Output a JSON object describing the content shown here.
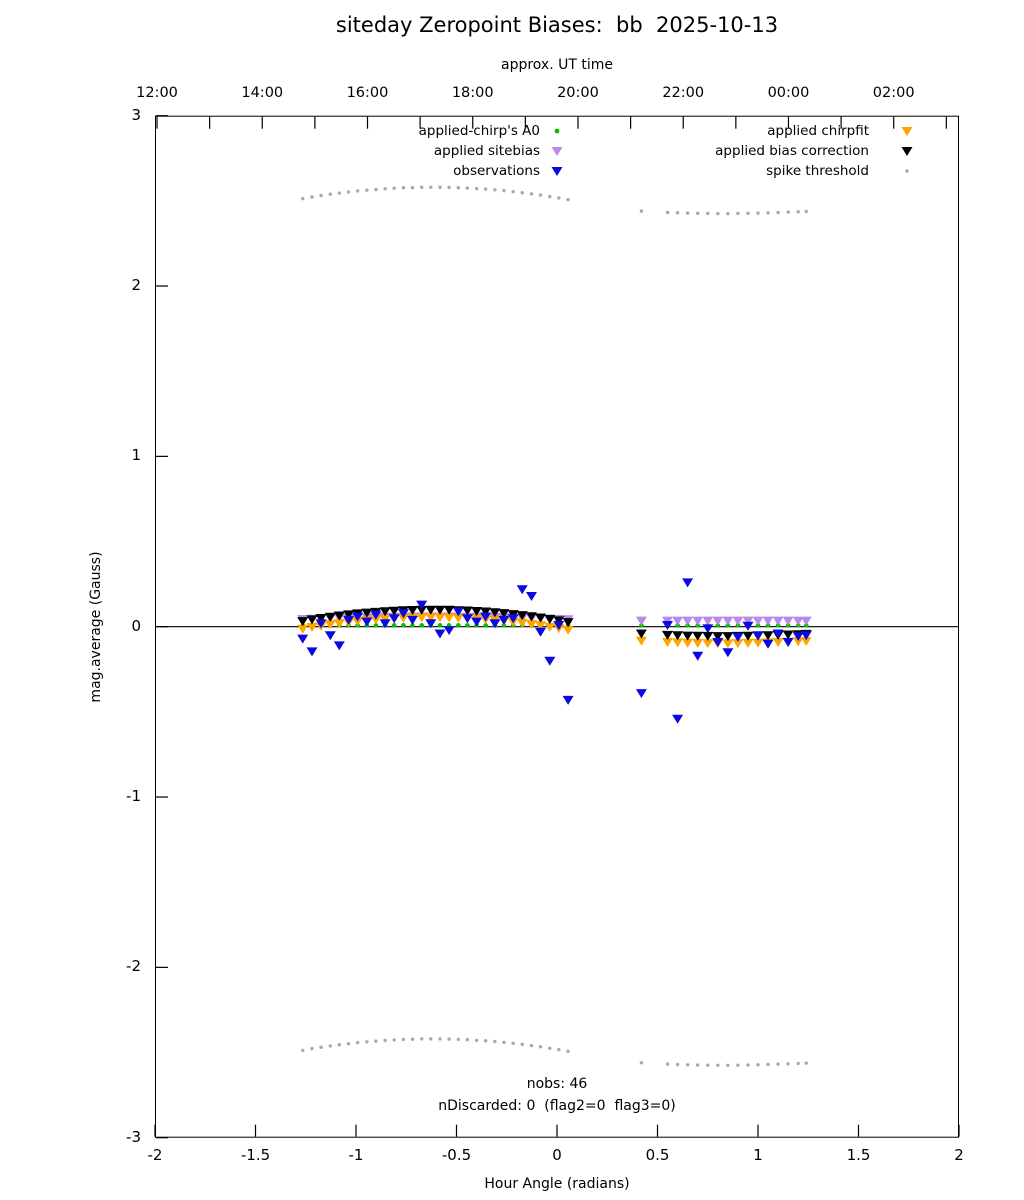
{
  "title": "siteday Zeropoint Biases:  bb  2025-10-13",
  "top_axis": {
    "label": "approx. UT time",
    "tick_labels": [
      "12:00",
      "14:00",
      "16:00",
      "18:00",
      "20:00",
      "22:00",
      "00:00",
      "02:00"
    ]
  },
  "x_axis": {
    "label": "Hour Angle (radians)",
    "tick_values": [
      -2,
      -1.5,
      -1,
      -0.5,
      0,
      0.5,
      1,
      1.5,
      2
    ],
    "tick_labels": [
      "-2",
      "-1.5",
      "-1",
      "-0.5",
      "0",
      "0.5",
      "1",
      "1.5",
      "2"
    ]
  },
  "y_axis": {
    "label": "mag.average (Gauss)",
    "tick_values": [
      3,
      2,
      1,
      0,
      -1,
      -2,
      -3
    ],
    "tick_labels": [
      "3",
      "2",
      "1",
      "0",
      "-1",
      "-2",
      "-3"
    ]
  },
  "annotations": {
    "nobs": "nobs: 46",
    "ndiscarded": "nDiscarded: 0  (flag2=0  flag3=0)"
  },
  "legend": {
    "columns": [
      {
        "items": [
          {
            "label": "applied-chirp's A0",
            "marker": "dot",
            "color": "#00C000"
          },
          {
            "label": "applied sitebias",
            "marker": "triangle-down",
            "color": "#BB88EE"
          },
          {
            "label": "observations",
            "marker": "triangle-down",
            "color": "#0A0AE0"
          }
        ]
      },
      {
        "items": [
          {
            "label": "applied chirpfit",
            "marker": "triangle-down",
            "color": "#FFA500"
          },
          {
            "label": "applied bias correction",
            "marker": "triangle-down",
            "color": "#000000"
          },
          {
            "label": "spike threshold",
            "marker": "small-dot",
            "color": "#A8A8A8"
          }
        ]
      }
    ]
  },
  "chart_data": {
    "type": "scatter",
    "title": "siteday Zeropoint Biases:  bb  2025-10-13",
    "xlabel": "Hour Angle (radians)",
    "ylabel": "mag.average (Gauss)",
    "xlim": [
      -2,
      2
    ],
    "ylim": [
      -3,
      3
    ],
    "grid": false,
    "zero_line": true,
    "ut_axis": {
      "start_label": "12:00",
      "hours_per_radian": 3.8197,
      "first_tick_ha": -1.99,
      "tick_step_ha": 0.2618,
      "n_ticks": 16
    },
    "x": [
      -1.265,
      -1.219,
      -1.174,
      -1.128,
      -1.083,
      -1.037,
      -0.992,
      -0.946,
      -0.901,
      -0.855,
      -0.81,
      -0.764,
      -0.719,
      -0.673,
      -0.628,
      -0.582,
      -0.537,
      -0.491,
      -0.446,
      -0.4,
      -0.355,
      -0.309,
      -0.264,
      -0.218,
      -0.173,
      -0.127,
      -0.082,
      -0.036,
      0.009,
      0.055,
      0.42,
      0.55,
      0.6,
      0.65,
      0.7,
      0.75,
      0.8,
      0.85,
      0.9,
      0.95,
      1.0,
      1.05,
      1.1,
      1.15,
      1.2,
      1.24
    ],
    "series": [
      {
        "name": "applied-chirp's A0",
        "marker": "dot",
        "color": "#00C000",
        "values": [
          0.008,
          0.008,
          0.008,
          0.008,
          0.008,
          0.008,
          0.008,
          0.008,
          0.008,
          0.008,
          0.008,
          0.008,
          0.008,
          0.008,
          0.008,
          0.008,
          0.008,
          0.008,
          0.008,
          0.008,
          0.008,
          0.008,
          0.008,
          0.008,
          0.008,
          0.008,
          0.008,
          0.008,
          0.008,
          0.008,
          0.008,
          0.008,
          0.008,
          0.008,
          0.008,
          0.008,
          0.008,
          0.008,
          0.008,
          0.008,
          0.008,
          0.008,
          0.008,
          0.008,
          0.008,
          0.008
        ]
      },
      {
        "name": "applied sitebias",
        "marker": "triangle-down",
        "color": "#BB88EE",
        "values": [
          0.045,
          0.047,
          0.049,
          0.051,
          0.052,
          0.054,
          0.055,
          0.056,
          0.057,
          0.058,
          0.059,
          0.059,
          0.06,
          0.06,
          0.06,
          0.06,
          0.06,
          0.059,
          0.059,
          0.058,
          0.058,
          0.057,
          0.056,
          0.054,
          0.053,
          0.052,
          0.05,
          0.048,
          0.046,
          0.044,
          0.036,
          0.036,
          0.036,
          0.036,
          0.036,
          0.036,
          0.036,
          0.036,
          0.036,
          0.036,
          0.036,
          0.036,
          0.036,
          0.036,
          0.036,
          0.036
        ]
      },
      {
        "name": "applied chirpfit",
        "marker": "triangle-down",
        "color": "#FFA500",
        "values": [
          -0.012,
          -0.002,
          0.006,
          0.014,
          0.021,
          0.027,
          0.033,
          0.038,
          0.042,
          0.046,
          0.049,
          0.052,
          0.053,
          0.055,
          0.055,
          0.055,
          0.054,
          0.052,
          0.05,
          0.047,
          0.044,
          0.04,
          0.035,
          0.029,
          0.023,
          0.016,
          0.009,
          0.0,
          -0.008,
          -0.018,
          -0.082,
          -0.09,
          -0.092,
          -0.094,
          -0.095,
          -0.096,
          -0.097,
          -0.097,
          -0.096,
          -0.095,
          -0.094,
          -0.092,
          -0.09,
          -0.088,
          -0.086,
          -0.084
        ]
      },
      {
        "name": "applied bias correction",
        "marker": "triangle-down",
        "color": "#000000",
        "values": [
          0.033,
          0.043,
          0.051,
          0.059,
          0.066,
          0.072,
          0.078,
          0.083,
          0.087,
          0.091,
          0.094,
          0.097,
          0.098,
          0.1,
          0.1,
          0.1,
          0.099,
          0.097,
          0.095,
          0.092,
          0.089,
          0.085,
          0.08,
          0.074,
          0.068,
          0.061,
          0.054,
          0.045,
          0.037,
          0.027,
          -0.04,
          -0.048,
          -0.05,
          -0.052,
          -0.053,
          -0.054,
          -0.055,
          -0.055,
          -0.054,
          -0.053,
          -0.052,
          -0.05,
          -0.048,
          -0.046,
          -0.044,
          -0.042
        ]
      },
      {
        "name": "observations",
        "marker": "triangle-down",
        "color": "#0A0AE0",
        "values": [
          -0.07,
          -0.145,
          0.02,
          -0.05,
          -0.11,
          0.04,
          0.06,
          0.03,
          0.07,
          0.02,
          0.05,
          0.08,
          0.04,
          0.13,
          0.02,
          -0.04,
          -0.02,
          0.09,
          0.05,
          0.03,
          0.06,
          0.02,
          0.04,
          0.05,
          0.22,
          0.18,
          -0.03,
          -0.2,
          0.01,
          -0.43,
          -0.39,
          0.01,
          -0.54,
          0.26,
          -0.17,
          -0.01,
          -0.09,
          -0.15,
          -0.06,
          0.005,
          -0.05,
          -0.1,
          -0.04,
          -0.09,
          -0.055,
          -0.05
        ]
      },
      {
        "name": "spike threshold",
        "marker": "small-dot",
        "color": "#A8A8A8",
        "upper": [
          2.513,
          2.523,
          2.531,
          2.539,
          2.546,
          2.552,
          2.558,
          2.563,
          2.567,
          2.571,
          2.574,
          2.577,
          2.578,
          2.58,
          2.58,
          2.58,
          2.579,
          2.577,
          2.575,
          2.572,
          2.569,
          2.565,
          2.56,
          2.554,
          2.548,
          2.541,
          2.534,
          2.525,
          2.517,
          2.507,
          2.44,
          2.432,
          2.43,
          2.428,
          2.427,
          2.426,
          2.425,
          2.425,
          2.426,
          2.427,
          2.428,
          2.43,
          2.432,
          2.434,
          2.436,
          2.438
        ],
        "lower": [
          -2.487,
          -2.477,
          -2.469,
          -2.461,
          -2.454,
          -2.448,
          -2.442,
          -2.437,
          -2.433,
          -2.429,
          -2.426,
          -2.423,
          -2.422,
          -2.42,
          -2.42,
          -2.42,
          -2.421,
          -2.423,
          -2.425,
          -2.428,
          -2.431,
          -2.435,
          -2.44,
          -2.446,
          -2.452,
          -2.459,
          -2.466,
          -2.475,
          -2.483,
          -2.493,
          -2.56,
          -2.568,
          -2.57,
          -2.572,
          -2.573,
          -2.574,
          -2.575,
          -2.575,
          -2.574,
          -2.573,
          -2.572,
          -2.57,
          -2.568,
          -2.566,
          -2.564,
          -2.562
        ]
      }
    ]
  }
}
